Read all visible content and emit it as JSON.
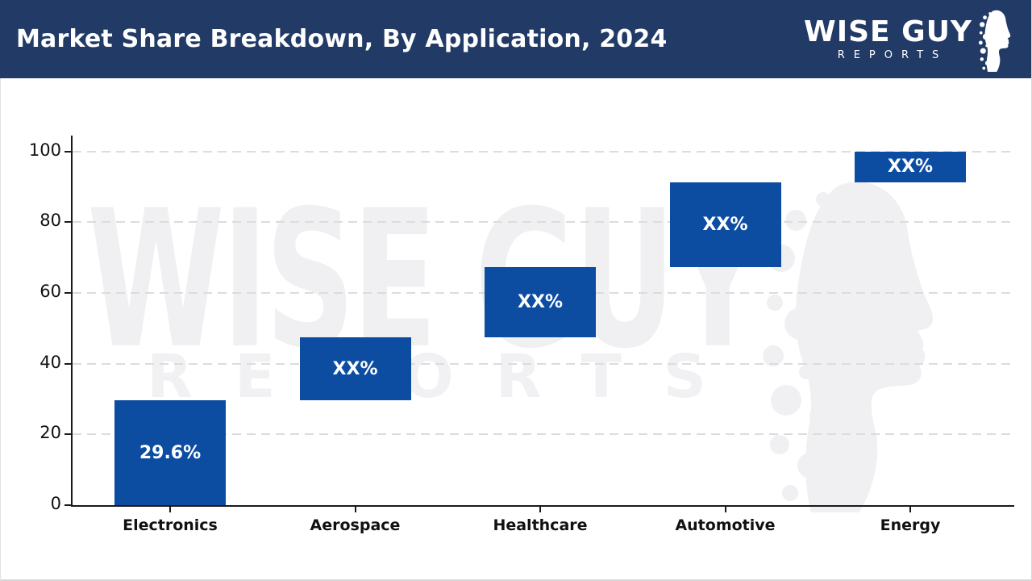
{
  "header": {
    "title": "Market Share Breakdown, By Application, 2024",
    "logo_line1": "WISE GUY",
    "logo_line2": "REPORTS"
  },
  "watermark": {
    "line1": "WISE GUY",
    "line2": "REPORTS"
  },
  "chart_data": {
    "type": "bar",
    "subtype": "waterfall",
    "title": "Market Share Breakdown, By Application, 2024",
    "categories": [
      "Electronics",
      "Aerospace",
      "Healthcare",
      "Automotive",
      "Energy"
    ],
    "segments": [
      {
        "category": "Electronics",
        "start": 0,
        "end": 29.6,
        "label": "29.6%"
      },
      {
        "category": "Aerospace",
        "start": 29.6,
        "end": 47.4,
        "label": "XX%"
      },
      {
        "category": "Healthcare",
        "start": 47.4,
        "end": 67.3,
        "label": "XX%"
      },
      {
        "category": "Automotive",
        "start": 67.3,
        "end": 91.2,
        "label": "XX%"
      },
      {
        "category": "Energy",
        "start": 91.2,
        "end": 100,
        "label": "XX%"
      }
    ],
    "yticks": [
      0,
      20,
      40,
      60,
      80,
      100
    ],
    "ylim": [
      0,
      105
    ],
    "xlabel": "",
    "ylabel": "",
    "grid": "horizontal-dashed",
    "legend": "none",
    "bar_color": "#0c4da2",
    "value_label_color": "#ffffff"
  },
  "colors": {
    "header_bg": "#213a66",
    "bar": "#0c4da2",
    "grid": "#dcdcdc",
    "axis": "#1a1a1a",
    "watermark": "#f0f0f2"
  }
}
